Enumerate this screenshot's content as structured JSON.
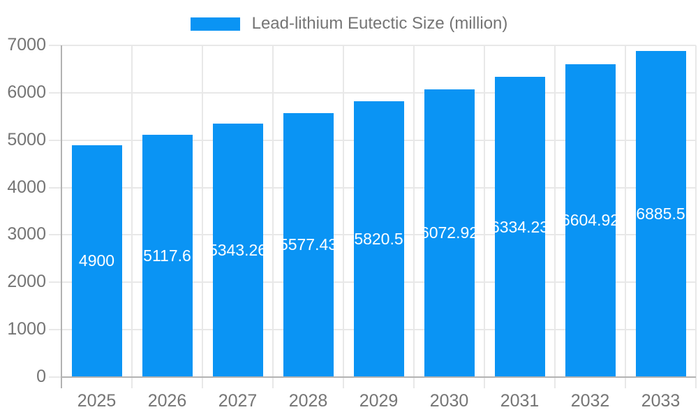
{
  "chart_data": {
    "type": "bar",
    "title": "Lead-lithium Eutectic Size (million)",
    "categories": [
      "2025",
      "2026",
      "2027",
      "2028",
      "2029",
      "2030",
      "2031",
      "2032",
      "2033"
    ],
    "values": [
      4900,
      5117.6,
      5343.26,
      5577.43,
      5820.5,
      6072.92,
      6334.23,
      6604.92,
      6885.5
    ],
    "value_labels": [
      "4900",
      "5117.6",
      "5343.26",
      "5577.43",
      "5820.5",
      "6072.92",
      "6334.23",
      "6604.92",
      "6885.5"
    ],
    "xlabel": "",
    "ylabel": "",
    "ylim": [
      0,
      7000
    ],
    "ytick_interval": 1000,
    "ytick_labels": [
      "0",
      "1000",
      "2000",
      "3000",
      "4000",
      "5000",
      "6000",
      "7000"
    ],
    "grid": "on",
    "legend_position": "top-center",
    "colors": {
      "bar": "#0a94f4",
      "gridline": "#e8e8e8",
      "axis_line": "#b2b2b2",
      "axis_text": "#757575",
      "value_label_text": "#ffffff",
      "background": "#ffffff"
    }
  }
}
